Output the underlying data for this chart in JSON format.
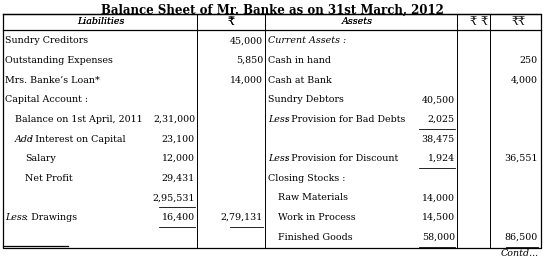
{
  "title": "Balance Sheet of Mr. Banke as on 31st March, 2012",
  "headers_left": [
    "Liabilities",
    "₹",
    "₹"
  ],
  "headers_right": [
    "Assets",
    "₹",
    "₹"
  ],
  "left_rows": [
    {
      "label": "Sundry Creditors",
      "indent": 0,
      "col1": "",
      "col2": "45,000",
      "ul1": false,
      "ul2": false
    },
    {
      "label": "Outstanding Expenses",
      "indent": 0,
      "col1": "",
      "col2": "5,850",
      "ul1": false,
      "ul2": false
    },
    {
      "label": "Mrs. Banke’s Loan*",
      "indent": 0,
      "col1": "",
      "col2": "14,000",
      "ul1": false,
      "ul2": false
    },
    {
      "label": "Capital Account :",
      "indent": 0,
      "col1": "",
      "col2": "",
      "ul1": false,
      "ul2": false
    },
    {
      "label": "Balance on 1st April, 2011",
      "indent": 1,
      "col1": "2,31,000",
      "col2": "",
      "ul1": false,
      "ul2": false
    },
    {
      "label": "Add_italic: Interest on Capital",
      "indent": 1,
      "col1": "23,100",
      "col2": "",
      "ul1": false,
      "ul2": false
    },
    {
      "label": "Salary",
      "indent": 2,
      "col1": "12,000",
      "col2": "",
      "ul1": false,
      "ul2": false
    },
    {
      "label": "Net Profit",
      "indent": 2,
      "col1": "29,431",
      "col2": "",
      "ul1": false,
      "ul2": false
    },
    {
      "label": "",
      "indent": 0,
      "col1": "2,95,531",
      "col2": "",
      "ul1": true,
      "ul2": false
    },
    {
      "label": "Less_italic : Drawings",
      "indent": 0,
      "col1": "16,400",
      "col2": "2,79,131",
      "ul1": true,
      "ul2": true
    }
  ],
  "right_rows": [
    {
      "label": "Current Assets :",
      "style": "italic",
      "indent": 0,
      "col1": "",
      "col2": "",
      "ul1": false,
      "ul2": false
    },
    {
      "label": "Cash in hand",
      "style": "normal",
      "indent": 0,
      "col1": "",
      "col2": "250",
      "ul1": false,
      "ul2": false
    },
    {
      "label": "Cash at Bank",
      "style": "normal",
      "indent": 0,
      "col1": "",
      "col2": "4,000",
      "ul1": false,
      "ul2": false
    },
    {
      "label": "Sundry Debtors",
      "style": "normal",
      "indent": 0,
      "col1": "40,500",
      "col2": "",
      "ul1": false,
      "ul2": false
    },
    {
      "label": "Less_italic: Provision for Bad Debts",
      "style": "less_italic",
      "indent": 0,
      "col1": "2,025",
      "col2": "",
      "ul1": true,
      "ul2": false
    },
    {
      "label": "",
      "style": "normal",
      "indent": 0,
      "col1": "38,475",
      "col2": "",
      "ul1": false,
      "ul2": false
    },
    {
      "label": "Less_italic: Provision for Discount",
      "style": "less_italic",
      "indent": 0,
      "col1": "1,924",
      "col2": "36,551",
      "ul1": true,
      "ul2": false
    },
    {
      "label": "Closing Stocks :",
      "style": "normal",
      "indent": 0,
      "col1": "",
      "col2": "",
      "ul1": false,
      "ul2": false
    },
    {
      "label": "Raw Materials",
      "style": "normal",
      "indent": 1,
      "col1": "14,000",
      "col2": "",
      "ul1": false,
      "ul2": false
    },
    {
      "label": "Work in Process",
      "style": "normal",
      "indent": 1,
      "col1": "14,500",
      "col2": "",
      "ul1": false,
      "ul2": false
    },
    {
      "label": "Finished Goods",
      "style": "normal",
      "indent": 1,
      "col1": "58,000",
      "col2": "86,500",
      "ul1": true,
      "ul2": true
    }
  ],
  "footer_text": "Contd...",
  "bg_color": "#ffffff",
  "font_size": 6.8,
  "title_font_size": 8.5
}
